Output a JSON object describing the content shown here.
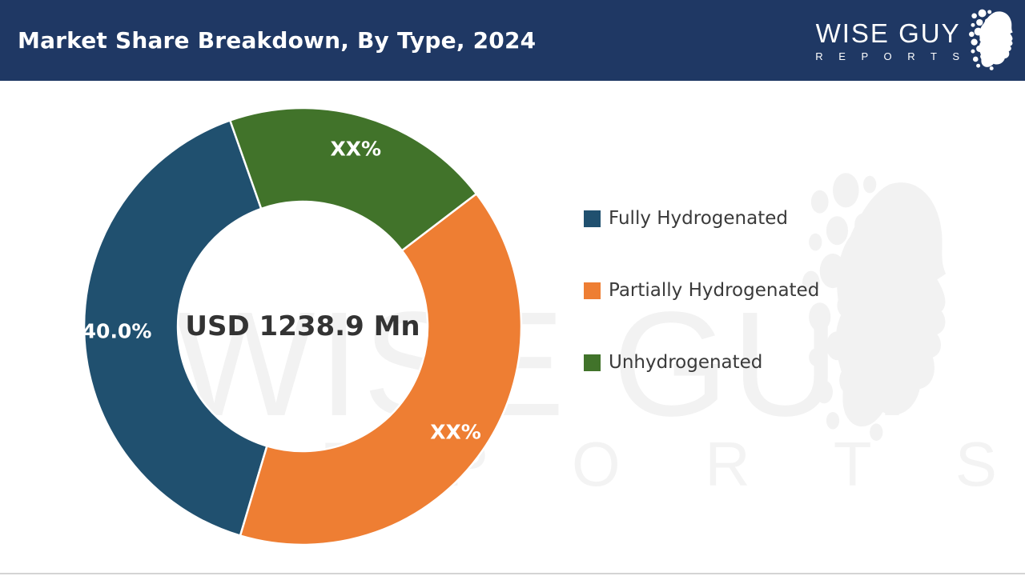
{
  "header": {
    "title": "Market Share Breakdown, By Type, 2024",
    "bg_color": "#1f3864",
    "logo": {
      "line1": "WISE GUY",
      "line2": "R E P O R T S"
    }
  },
  "chart_data": {
    "type": "pie",
    "subtype": "donut",
    "title": "Market Share Breakdown, By Type, 2024",
    "center_label": "USD 1238.9 Mn",
    "start_angle_deg": 109.4,
    "direction": "counterclockwise",
    "inner_radius_ratio": 0.57,
    "legend_position": "right",
    "segments": [
      {
        "name": "Fully Hydrogenated",
        "value_pct": 40.0,
        "display_label": "40.0%",
        "color": "#20506f"
      },
      {
        "name": "Partially Hydrogenated",
        "value_pct": 40.0,
        "display_label": "XX%",
        "color": "#ee7e33"
      },
      {
        "name": "Unhydrogenated",
        "value_pct": 20.0,
        "display_label": "XX%",
        "color": "#41732a"
      }
    ]
  },
  "watermark": {
    "line1": "WISE GUY",
    "line2": "R E P O R T S"
  },
  "misc": {
    "bottom_line_color": "#d4d4d4",
    "watermark_color": "#f2f2f2"
  }
}
